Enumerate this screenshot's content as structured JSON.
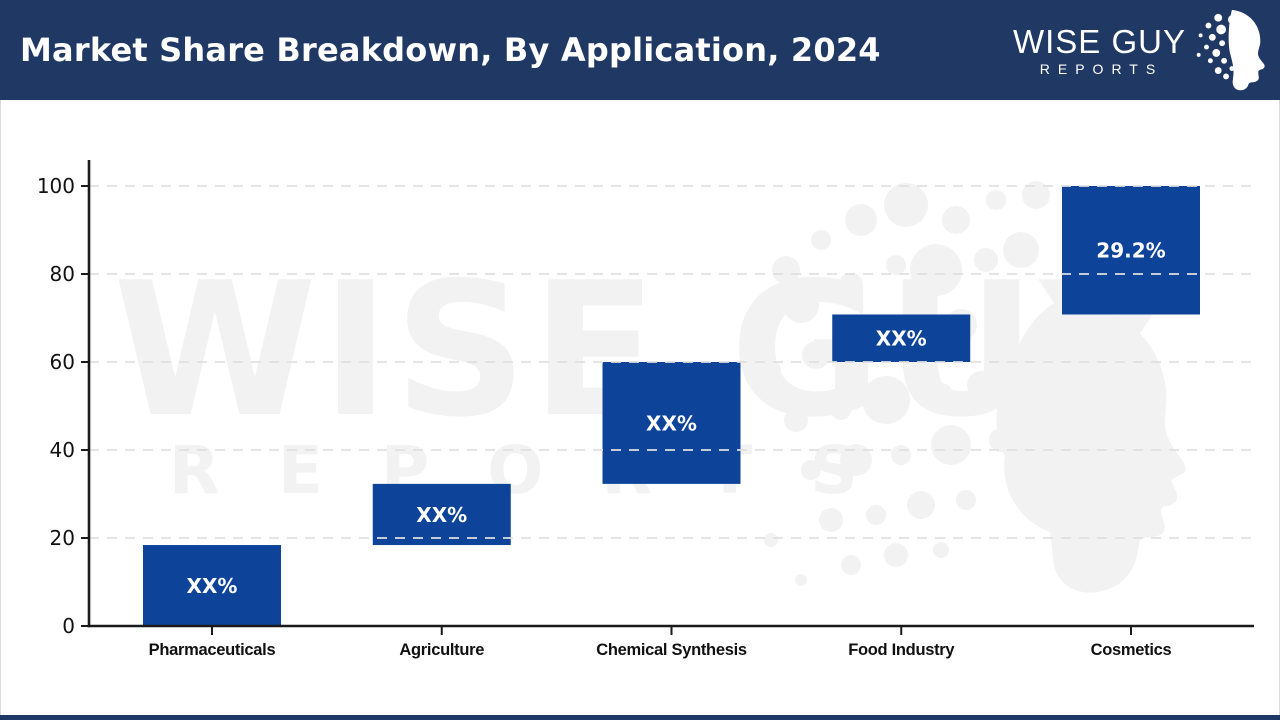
{
  "header": {
    "title": "Market Share Breakdown, By Application, 2024",
    "logo_line1": "WISE GUY",
    "logo_line2": "REPORTS"
  },
  "watermark": {
    "line1": "WISE GUY",
    "line2": "REPORTS"
  },
  "chart_data": {
    "type": "bar",
    "subtype": "floating-waterfall",
    "title": "Market Share Breakdown, By Application, 2024",
    "categories": [
      "Pharmaceuticals",
      "Agriculture",
      "Chemical Synthesis",
      "Food Industry",
      "Cosmetics"
    ],
    "points": [
      {
        "category": "Pharmaceuticals",
        "start": 0,
        "end": 18.4,
        "label": "XX%"
      },
      {
        "category": "Agriculture",
        "start": 18.4,
        "end": 32.3,
        "label": "XX%"
      },
      {
        "category": "Chemical Synthesis",
        "start": 32.3,
        "end": 60.0,
        "label": "XX%"
      },
      {
        "category": "Food Industry",
        "start": 60.0,
        "end": 70.8,
        "label": "XX%"
      },
      {
        "category": "Cosmetics",
        "start": 70.8,
        "end": 100.0,
        "label": "29.2%",
        "value": 29.2
      }
    ],
    "xlabel": "",
    "ylabel": "",
    "yticks": [
      0,
      20,
      40,
      60,
      80,
      100
    ],
    "ylim": [
      0,
      105
    ],
    "grid": true,
    "grid_style": "dashed",
    "legend": false
  },
  "colors": {
    "header_bg": "#203864",
    "footer_bg": "#203864",
    "bar_fill": "#0d4499",
    "bar_label": "#ffffff",
    "axis": "#1a1a1a",
    "tick_label": "#111111",
    "gridline": "#e0e0e0",
    "watermark": "#f2f2f3"
  }
}
